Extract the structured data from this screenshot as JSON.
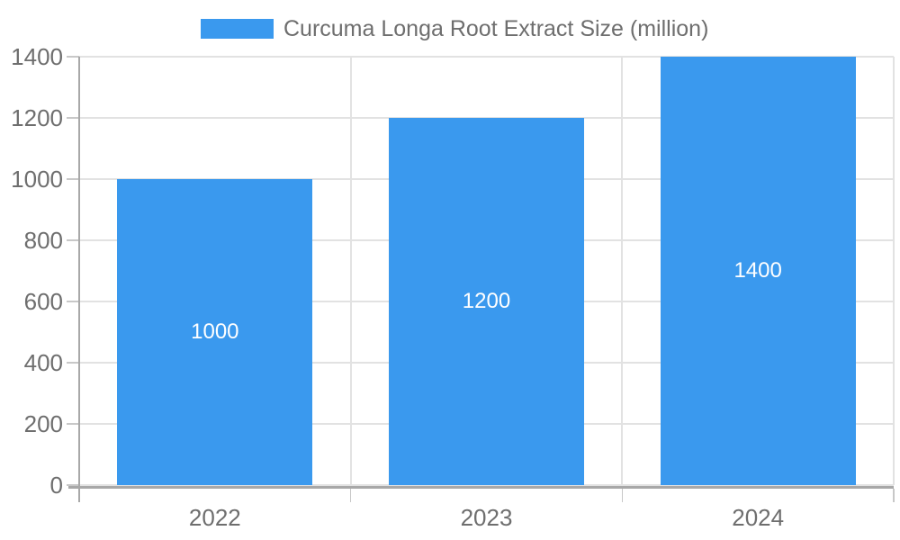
{
  "chart_data": {
    "type": "bar",
    "title": "",
    "legend": {
      "label": "Curcuma Longa Root Extract Size (million)",
      "position": "top"
    },
    "categories": [
      "2022",
      "2023",
      "2024"
    ],
    "series": [
      {
        "name": "Curcuma Longa Root Extract Size (million)",
        "values": [
          1000,
          1200,
          1400
        ]
      }
    ],
    "bar_value_labels": [
      "1000",
      "1200",
      "1400"
    ],
    "xlabel": "",
    "ylabel": "",
    "ylim": [
      0,
      1400
    ],
    "ytick_step": 200,
    "yticks": [
      0,
      200,
      400,
      600,
      800,
      1000,
      1200,
      1400
    ],
    "grid": "horizontal gridlines plus vertical category-boundary gridlines",
    "legend_position": "top-center"
  },
  "colors": {
    "bar": "#3a99ee",
    "bar_label_text": "#ffffff",
    "axis_text": "#6e6e6e",
    "gridline": "#e2e2e2",
    "axis_line": "#a8a8a8",
    "tick_mark": "#c8c8c8",
    "background": "#ffffff"
  }
}
